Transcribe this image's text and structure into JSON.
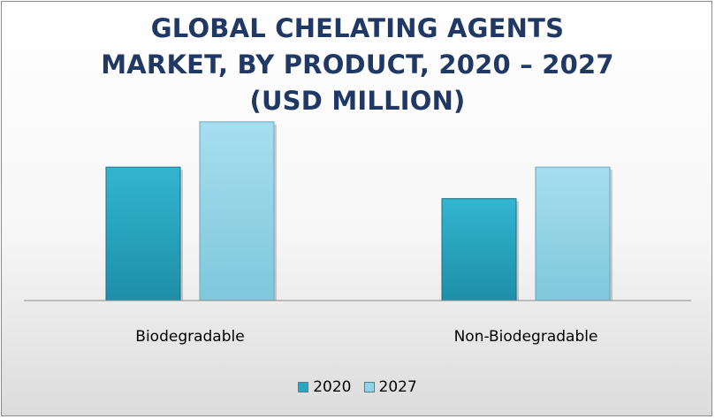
{
  "chart_data": {
    "type": "bar",
    "title_lines": [
      "GLOBAL CHELATING AGENTS",
      "MARKET, BY PRODUCT, 2020 – 2027",
      "(USD MILLION)"
    ],
    "categories": [
      "Biodegradable",
      "Non-Biodegradable"
    ],
    "series": [
      {
        "name": "2020",
        "values": [
          106,
          81
        ],
        "color": "#2aa6c2"
      },
      {
        "name": "2027",
        "values": [
          142,
          106
        ],
        "color": "#8fd3e6"
      }
    ],
    "ylim": [
      0,
      170
    ],
    "grid": false,
    "legend_position": "bottom"
  }
}
